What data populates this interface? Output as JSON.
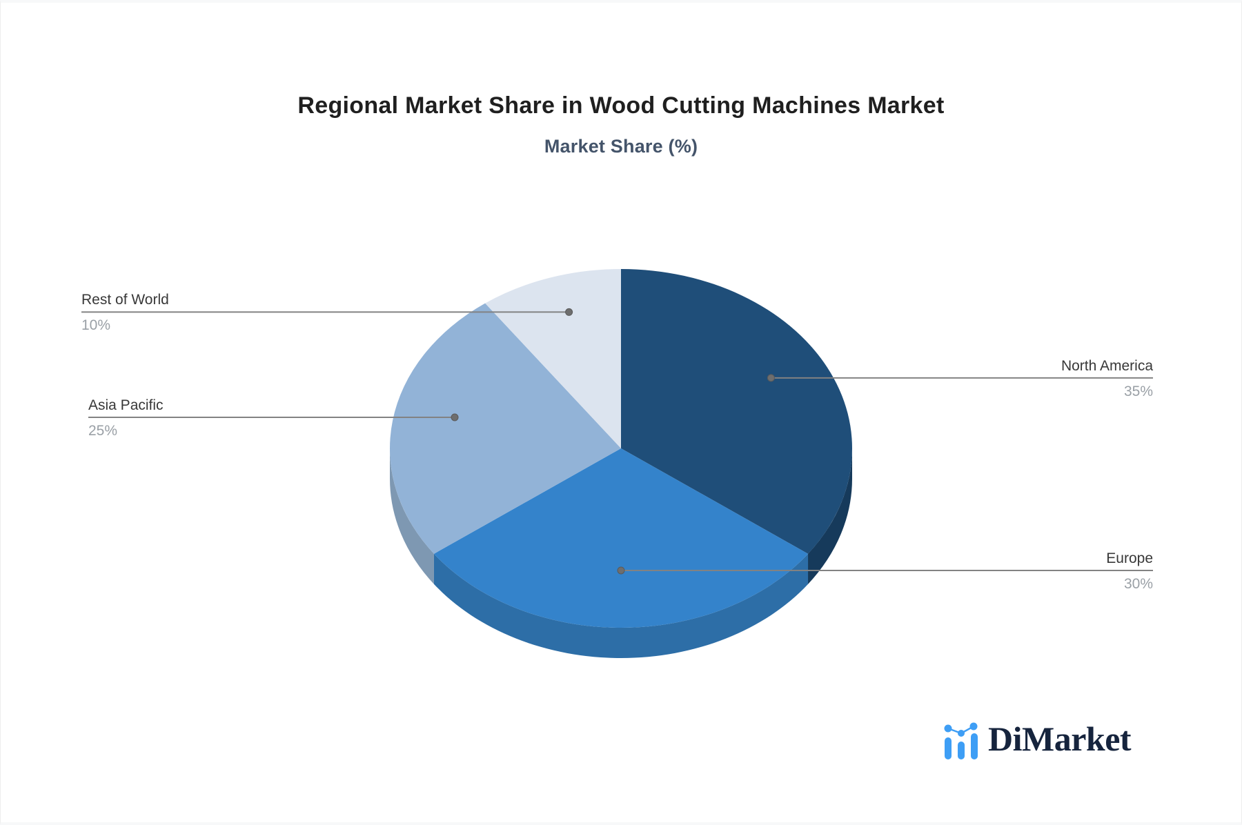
{
  "chart_data": {
    "type": "pie",
    "style": "3d",
    "title": "Regional Market Share in Wood Cutting Machines Market",
    "subtitle": "Market Share (%)",
    "start_angle_deg": 90,
    "direction": "clockwise",
    "legend_position": "callout-labels",
    "series": [
      {
        "label": "North America",
        "value": 35,
        "display_value": "35%",
        "color": "#1F4E79",
        "side_color": "#163A5B"
      },
      {
        "label": "Europe",
        "value": 30,
        "display_value": "30%",
        "color": "#3483CB",
        "side_color": "#2D6EA7"
      },
      {
        "label": "Asia Pacific",
        "value": 25,
        "display_value": "25%",
        "color": "#92B3D7",
        "side_color": "#7E98B2"
      },
      {
        "label": "Rest of World",
        "value": 10,
        "display_value": "10%",
        "color": "#DCE4EF",
        "side_color": "#C3CEDC"
      }
    ],
    "label_text_color": "#383838",
    "value_text_color": "#9aa0a6",
    "leader_line_color": "#828282",
    "leader_dot_color": "#6e6e6e"
  },
  "logo": {
    "text": "DiMarket",
    "brand_color": "#3E9EF5",
    "text_color": "#16243D"
  }
}
